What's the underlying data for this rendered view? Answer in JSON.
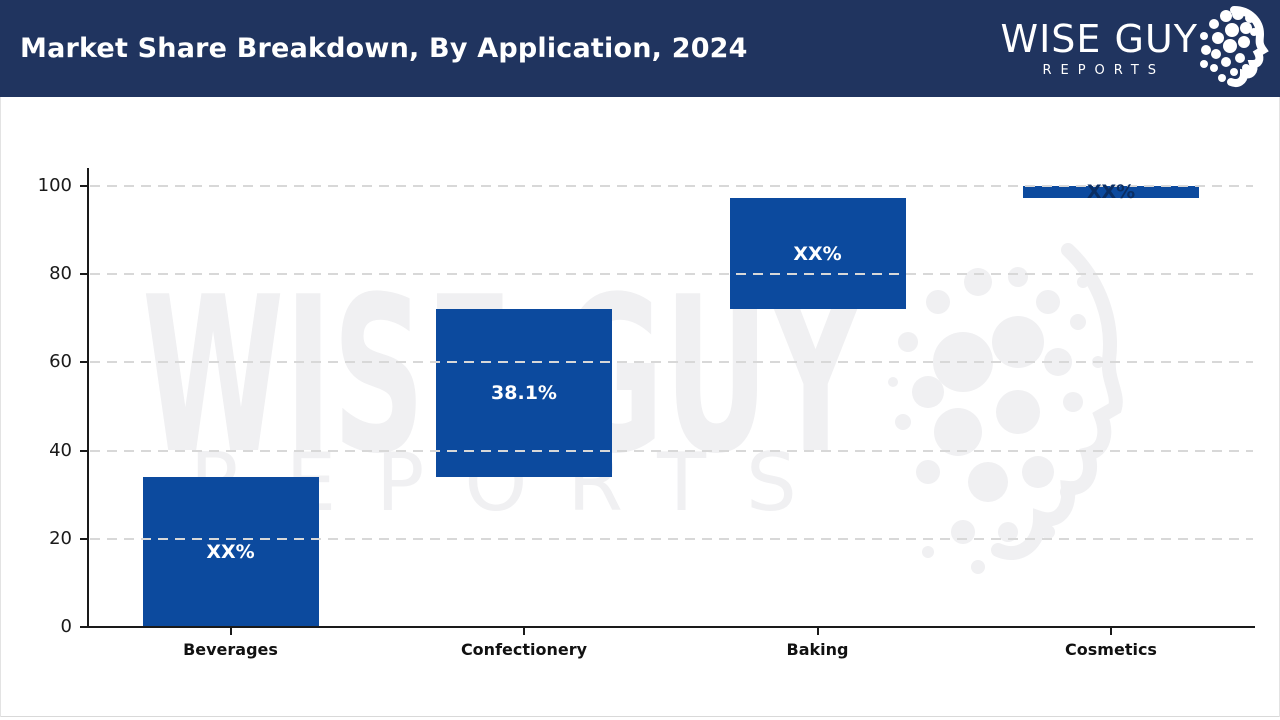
{
  "header": {
    "title": "Market Share Breakdown, By Application, 2024",
    "background_color": "#20345f",
    "logo": {
      "line1": "WISE GUY",
      "line2": "REPORTS"
    }
  },
  "watermark": {
    "line1": "WISE GUY",
    "line2": "REPORTS"
  },
  "chart_data": {
    "type": "bar",
    "variant": "waterfall",
    "title": "Market Share Breakdown, By Application, 2024",
    "xlabel": "",
    "ylabel": "",
    "categories": [
      "Beverages",
      "Confectionery",
      "Baking",
      "Cosmetics"
    ],
    "segments": [
      {
        "category": "Beverages",
        "start": 0,
        "end": 34.0,
        "value_label": "XX%",
        "label_color": "#ffffff"
      },
      {
        "category": "Confectionery",
        "start": 34.0,
        "end": 72.1,
        "value_label": "38.1%",
        "label_color": "#ffffff"
      },
      {
        "category": "Baking",
        "start": 72.1,
        "end": 97.2,
        "value_label": "XX%",
        "label_color": "#ffffff"
      },
      {
        "category": "Cosmetics",
        "start": 97.2,
        "end": 100.0,
        "value_label": "XX%",
        "label_color": "#0a2e63"
      }
    ],
    "bar_color": "#0c4a9e",
    "y_ticks": [
      0,
      20,
      40,
      60,
      80,
      100
    ],
    "ylim": [
      0,
      104
    ],
    "grid": {
      "horizontal": true,
      "style": "dashed",
      "color": "#d8d8d8",
      "above_bars": true
    },
    "axis_color": "#1a1a1a",
    "legend": "none"
  }
}
